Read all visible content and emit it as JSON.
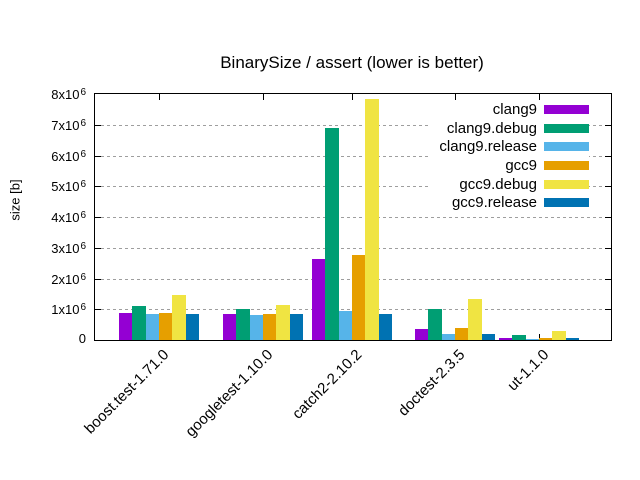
{
  "chart_data": {
    "type": "bar",
    "title": "BinarySize / assert (lower is better)",
    "xlabel": "",
    "ylabel": "size [b]",
    "ylim": [
      0,
      8000000
    ],
    "ytick_interval": 1000000,
    "ytick_labels": [
      "0",
      "1x10^6",
      "2x10^6",
      "3x10^6",
      "4x10^6",
      "5x10^6",
      "6x10^6",
      "7x10^6",
      "8x10^6"
    ],
    "grid": {
      "horizontal": true,
      "style": "dashed",
      "color": "#9e9e9e"
    },
    "legend_position": "top-right-inside",
    "categories": [
      "boost.test-1.71.0",
      "googletest-1.10.0",
      "catch2-2.10.2",
      "doctest-2.3.5",
      "ut-1.1.0"
    ],
    "series": [
      {
        "name": "clang9",
        "color": "#9400d3",
        "values": [
          870000,
          840000,
          2630000,
          370000,
          70000
        ]
      },
      {
        "name": "clang9.debug",
        "color": "#009e73",
        "values": [
          1120000,
          1020000,
          6910000,
          1000000,
          160000
        ]
      },
      {
        "name": "clang9.release",
        "color": "#56b4e9",
        "values": [
          840000,
          800000,
          930000,
          190000,
          30000
        ]
      },
      {
        "name": "gcc9",
        "color": "#e69f00",
        "values": [
          880000,
          830000,
          2780000,
          400000,
          60000
        ]
      },
      {
        "name": "gcc9.debug",
        "color": "#f0e442",
        "values": [
          1460000,
          1150000,
          7830000,
          1320000,
          290000
        ]
      },
      {
        "name": "gcc9.release",
        "color": "#0072b2",
        "values": [
          840000,
          840000,
          850000,
          200000,
          50000
        ]
      }
    ]
  }
}
